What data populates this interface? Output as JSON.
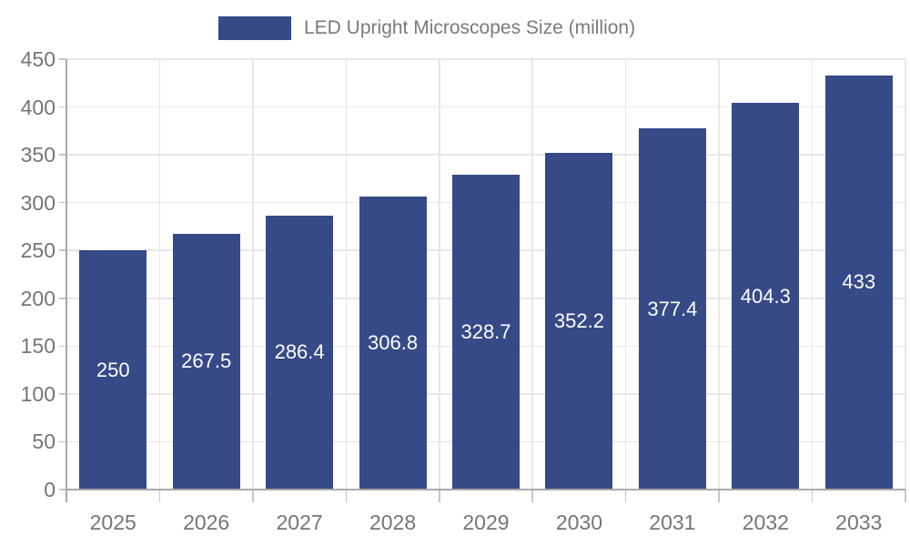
{
  "legend": {
    "label": "LED Upright Microscopes Size (million)"
  },
  "colors": {
    "bar": "#354A87",
    "grid": "#E7E7E7",
    "axis": "#A9A9A9",
    "tick_mark": "#C6C6C6",
    "tick_label": "#757575",
    "legend_text": "#7A7A7A",
    "value_label": "#FFFFFF",
    "background": "#FFFFFF"
  },
  "chart_data": {
    "type": "bar",
    "title": "LED Upright Microscopes Size (million)",
    "categories": [
      "2025",
      "2026",
      "2027",
      "2028",
      "2029",
      "2030",
      "2031",
      "2032",
      "2033"
    ],
    "series": [
      {
        "name": "LED Upright Microscopes Size (million)",
        "values": [
          250,
          267.5,
          286.4,
          306.8,
          328.7,
          352.2,
          377.4,
          404.3,
          433
        ]
      }
    ],
    "value_labels": [
      "250",
      "267.5",
      "286.4",
      "306.8",
      "328.7",
      "352.2",
      "377.4",
      "404.3",
      "433"
    ],
    "ytick_labels": [
      "0",
      "50",
      "100",
      "150",
      "200",
      "250",
      "300",
      "350",
      "400",
      "450"
    ],
    "yticks": [
      0,
      50,
      100,
      150,
      200,
      250,
      300,
      350,
      400,
      450
    ],
    "ylim": [
      0,
      450
    ],
    "xlabel": "",
    "ylabel": "",
    "grid": true,
    "legend_position": "top"
  }
}
